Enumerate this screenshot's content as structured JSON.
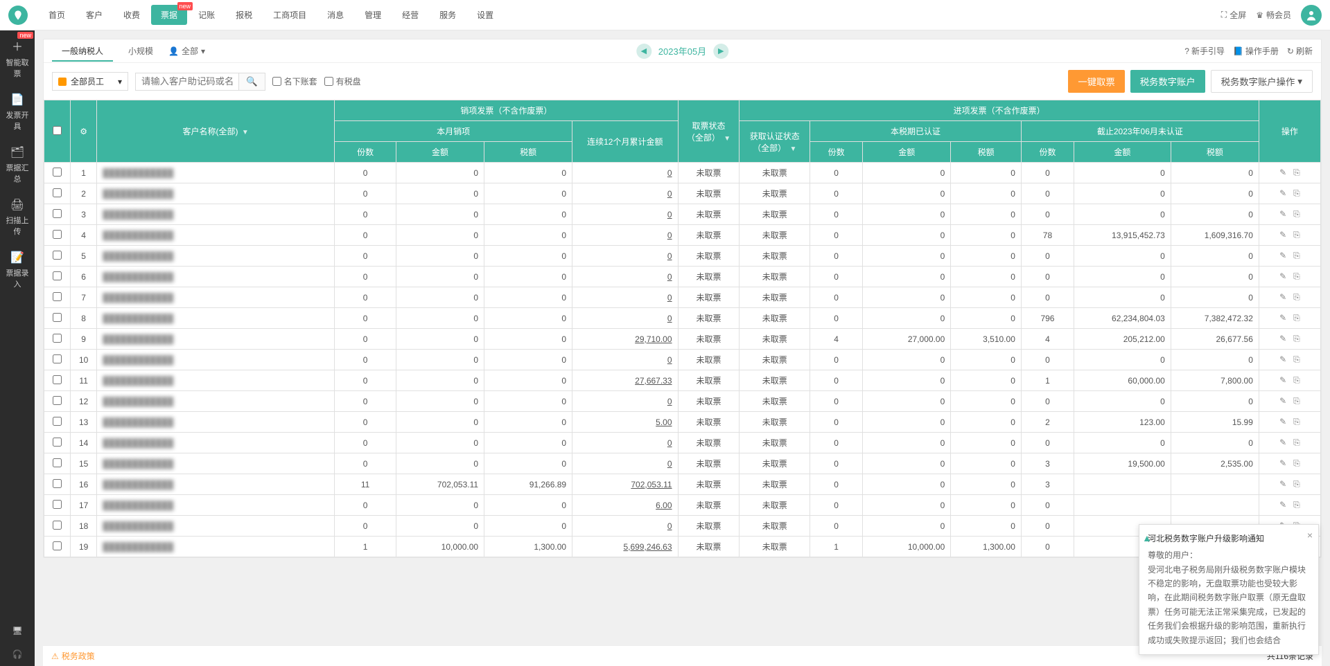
{
  "colors": {
    "primary": "#3db5a0",
    "accent": "#ff9933",
    "danger": "#ff4d4f",
    "sidebar_bg": "#2c2c2c"
  },
  "nav": {
    "items": [
      {
        "label": "首页",
        "active": false
      },
      {
        "label": "客户",
        "active": false
      },
      {
        "label": "收费",
        "active": false
      },
      {
        "label": "票据",
        "active": true,
        "badge": "new"
      },
      {
        "label": "记账",
        "active": false
      },
      {
        "label": "报税",
        "active": false
      },
      {
        "label": "工商项目",
        "active": false
      },
      {
        "label": "消息",
        "active": false
      },
      {
        "label": "管理",
        "active": false
      },
      {
        "label": "经营",
        "active": false
      },
      {
        "label": "服务",
        "active": false
      },
      {
        "label": "设置",
        "active": false
      }
    ],
    "right": {
      "fullscreen": "全屏",
      "member": "畅会员"
    }
  },
  "sidebar": {
    "items": [
      {
        "label": "智能取票",
        "icon": "＋",
        "badge": "new"
      },
      {
        "label": "发票开具",
        "icon": "📄"
      },
      {
        "label": "票据汇总",
        "icon": "🗂"
      },
      {
        "label": "扫描上传",
        "icon": "🖨"
      },
      {
        "label": "票据录入",
        "icon": "📝"
      }
    ]
  },
  "tabs": {
    "list": [
      {
        "label": "一般纳税人",
        "active": true
      },
      {
        "label": "小规模",
        "active": false
      }
    ],
    "scope": "全部",
    "month": "2023年05月",
    "right": [
      {
        "label": "新手引导",
        "icon": "?"
      },
      {
        "label": "操作手册",
        "icon": "📘"
      },
      {
        "label": "刷新",
        "icon": "↻"
      }
    ]
  },
  "filter": {
    "employee": "全部员工",
    "search_placeholder": "请输入客户助记码或名称",
    "check_accounts": "名下账套",
    "check_disk": "有税盘",
    "btn_fetch": "一键取票",
    "btn_digital": "税务数字账户",
    "btn_ops": "税务数字账户操作"
  },
  "table": {
    "head": {
      "customer": "客户名称(全部)",
      "sales_group": "销项发票（不含作废票）",
      "month_sales": "本月销项",
      "count": "份数",
      "amount": "金额",
      "tax": "税额",
      "cum12": "连续12个月累计金额",
      "fetch_status": "取票状态（全部）",
      "purchase_group": "进项发票（不含作废票）",
      "period_cert": "本税期已认证",
      "uncert": "截止2023年06月未认证",
      "cert_status": "获取认证状态（全部）",
      "ops": "操作"
    },
    "rows": [
      {
        "idx": 1,
        "sc": 0,
        "sa": "0",
        "st": "0",
        "cum": "0",
        "fs": "未取票",
        "cs": "未取票",
        "pc": 0,
        "pa": "0",
        "pt": "0",
        "uc": 0,
        "ua": "0",
        "ut": "0"
      },
      {
        "idx": 2,
        "sc": 0,
        "sa": "0",
        "st": "0",
        "cum": "0",
        "fs": "未取票",
        "cs": "未取票",
        "pc": 0,
        "pa": "0",
        "pt": "0",
        "uc": 0,
        "ua": "0",
        "ut": "0"
      },
      {
        "idx": 3,
        "sc": 0,
        "sa": "0",
        "st": "0",
        "cum": "0",
        "fs": "未取票",
        "cs": "未取票",
        "pc": 0,
        "pa": "0",
        "pt": "0",
        "uc": 0,
        "ua": "0",
        "ut": "0"
      },
      {
        "idx": 4,
        "sc": 0,
        "sa": "0",
        "st": "0",
        "cum": "0",
        "fs": "未取票",
        "cs": "未取票",
        "pc": 0,
        "pa": "0",
        "pt": "0",
        "uc": 78,
        "ua": "13,915,452.73",
        "ut": "1,609,316.70"
      },
      {
        "idx": 5,
        "sc": 0,
        "sa": "0",
        "st": "0",
        "cum": "0",
        "fs": "未取票",
        "cs": "未取票",
        "pc": 0,
        "pa": "0",
        "pt": "0",
        "uc": 0,
        "ua": "0",
        "ut": "0"
      },
      {
        "idx": 6,
        "sc": 0,
        "sa": "0",
        "st": "0",
        "cum": "0",
        "fs": "未取票",
        "cs": "未取票",
        "pc": 0,
        "pa": "0",
        "pt": "0",
        "uc": 0,
        "ua": "0",
        "ut": "0"
      },
      {
        "idx": 7,
        "sc": 0,
        "sa": "0",
        "st": "0",
        "cum": "0",
        "fs": "未取票",
        "cs": "未取票",
        "pc": 0,
        "pa": "0",
        "pt": "0",
        "uc": 0,
        "ua": "0",
        "ut": "0"
      },
      {
        "idx": 8,
        "sc": 0,
        "sa": "0",
        "st": "0",
        "cum": "0",
        "fs": "未取票",
        "cs": "未取票",
        "pc": 0,
        "pa": "0",
        "pt": "0",
        "uc": 796,
        "ua": "62,234,804.03",
        "ut": "7,382,472.32"
      },
      {
        "idx": 9,
        "sc": 0,
        "sa": "0",
        "st": "0",
        "cum": "29,710.00",
        "fs": "未取票",
        "cs": "未取票",
        "pc": 4,
        "pa": "27,000.00",
        "pt": "3,510.00",
        "uc": 4,
        "ua": "205,212.00",
        "ut": "26,677.56"
      },
      {
        "idx": 10,
        "sc": 0,
        "sa": "0",
        "st": "0",
        "cum": "0",
        "fs": "未取票",
        "cs": "未取票",
        "pc": 0,
        "pa": "0",
        "pt": "0",
        "uc": 0,
        "ua": "0",
        "ut": "0"
      },
      {
        "idx": 11,
        "sc": 0,
        "sa": "0",
        "st": "0",
        "cum": "27,667.33",
        "fs": "未取票",
        "cs": "未取票",
        "pc": 0,
        "pa": "0",
        "pt": "0",
        "uc": 1,
        "ua": "60,000.00",
        "ut": "7,800.00"
      },
      {
        "idx": 12,
        "sc": 0,
        "sa": "0",
        "st": "0",
        "cum": "0",
        "fs": "未取票",
        "cs": "未取票",
        "pc": 0,
        "pa": "0",
        "pt": "0",
        "uc": 0,
        "ua": "0",
        "ut": "0"
      },
      {
        "idx": 13,
        "sc": 0,
        "sa": "0",
        "st": "0",
        "cum": "5.00",
        "fs": "未取票",
        "cs": "未取票",
        "pc": 0,
        "pa": "0",
        "pt": "0",
        "uc": 2,
        "ua": "123.00",
        "ut": "15.99"
      },
      {
        "idx": 14,
        "sc": 0,
        "sa": "0",
        "st": "0",
        "cum": "0",
        "fs": "未取票",
        "cs": "未取票",
        "pc": 0,
        "pa": "0",
        "pt": "0",
        "uc": 0,
        "ua": "0",
        "ut": "0"
      },
      {
        "idx": 15,
        "sc": 0,
        "sa": "0",
        "st": "0",
        "cum": "0",
        "fs": "未取票",
        "cs": "未取票",
        "pc": 0,
        "pa": "0",
        "pt": "0",
        "uc": 3,
        "ua": "19,500.00",
        "ut": "2,535.00"
      },
      {
        "idx": 16,
        "sc": 11,
        "sa": "702,053.11",
        "st": "91,266.89",
        "cum": "702,053.11",
        "fs": "未取票",
        "cs": "未取票",
        "pc": 0,
        "pa": "0",
        "pt": "0",
        "uc": 3,
        "ua": "",
        "ut": ""
      },
      {
        "idx": 17,
        "sc": 0,
        "sa": "0",
        "st": "0",
        "cum": "6.00",
        "fs": "未取票",
        "cs": "未取票",
        "pc": 0,
        "pa": "0",
        "pt": "0",
        "uc": 0,
        "ua": "",
        "ut": ""
      },
      {
        "idx": 18,
        "sc": 0,
        "sa": "0",
        "st": "0",
        "cum": "0",
        "fs": "未取票",
        "cs": "未取票",
        "pc": 0,
        "pa": "0",
        "pt": "0",
        "uc": 0,
        "ua": "",
        "ut": ""
      },
      {
        "idx": 19,
        "sc": 1,
        "sa": "10,000.00",
        "st": "1,300.00",
        "cum": "5,699,246.63",
        "fs": "未取票",
        "cs": "未取票",
        "pc": 1,
        "pa": "10,000.00",
        "pt": "1,300.00",
        "uc": 0,
        "ua": "",
        "ut": ""
      }
    ]
  },
  "footer": {
    "policy": "税务政策",
    "total": "共116条记录"
  },
  "notification": {
    "title": "河北税务数字账户升级影响通知",
    "greeting": "尊敬的用户：",
    "body": "受河北电子税务局刚升级税务数字账户模块不稳定的影响，无盘取票功能也受较大影响，在此期间税务数字账户取票（原无盘取票）任务可能无法正常采集完成，已发起的任务我们会根据升级的影响范围，重新执行成功或失败提示返回；我们也会结合"
  }
}
